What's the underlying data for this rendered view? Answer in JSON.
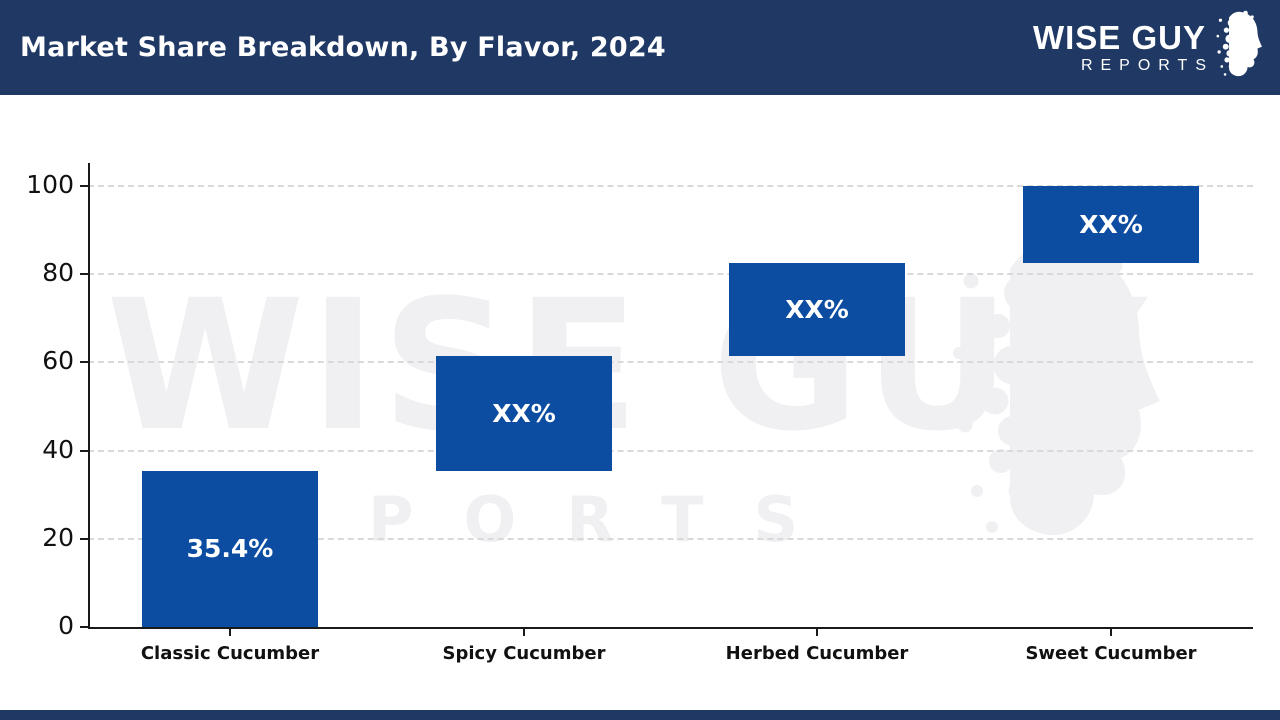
{
  "header": {
    "title": "Market Share Breakdown, By Flavor, 2024",
    "logo": {
      "line1": "WISE GUY",
      "line2": "REPORTS"
    }
  },
  "watermark": {
    "line1": "WISE GUY",
    "line2": "REPORTS"
  },
  "chart_data": {
    "type": "bar",
    "subtype": "waterfall",
    "title": "Market Share Breakdown, By Flavor, 2024",
    "categories": [
      "Classic Cucumber",
      "Spicy Cucumber",
      "Herbed Cucumber",
      "Sweet Cucumber"
    ],
    "segments": [
      {
        "category": "Classic Cucumber",
        "start": 0,
        "end": 35.4,
        "label": "35.4%"
      },
      {
        "category": "Spicy Cucumber",
        "start": 35.4,
        "end": 61.5,
        "label": "XX%"
      },
      {
        "category": "Herbed Cucumber",
        "start": 61.5,
        "end": 82.5,
        "label": "XX%"
      },
      {
        "category": "Sweet Cucumber",
        "start": 82.5,
        "end": 100,
        "label": "XX%"
      }
    ],
    "xlabel": "",
    "ylabel": "",
    "ylim": [
      0,
      100
    ],
    "yticks": [
      0,
      20,
      40,
      60,
      80,
      100
    ],
    "grid": "horizontal-dashed",
    "legend": "none",
    "bar_color": "#0c4da2",
    "bar_label_color": "#ffffff"
  },
  "colors": {
    "header_bg": "#1f3864",
    "footer_bg": "#1f3864",
    "bar": "#0c4da2",
    "axis": "#1a1a1a",
    "gridline": "#d9d9d9",
    "watermark": "#f0f0f3",
    "title_text": "#ffffff"
  }
}
